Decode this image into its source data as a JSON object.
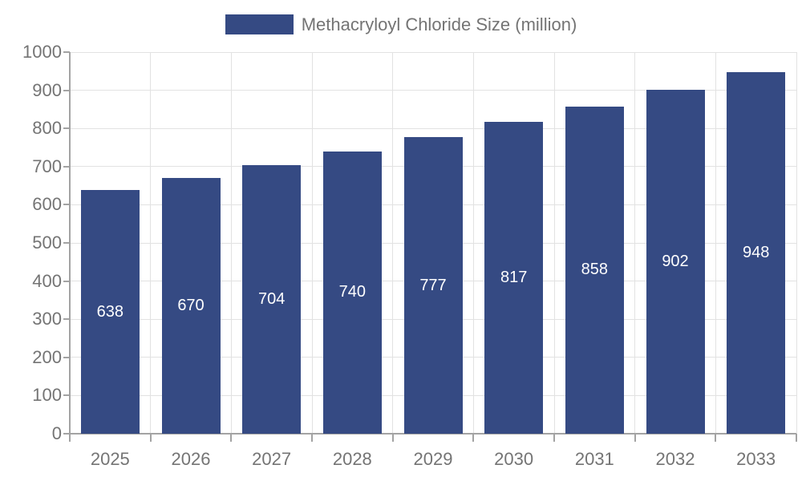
{
  "legend": {
    "label": "Methacryloyl Chloride Size (million)"
  },
  "colors": {
    "bar": "#354a83",
    "bar_label": "#ffffff",
    "grid": "#e2e2e2",
    "axis": "#a3a3a3",
    "tick_text": "#747474",
    "background": "#ffffff"
  },
  "chart_data": {
    "type": "bar",
    "title": "Methacryloyl Chloride Size (million)",
    "categories": [
      "2025",
      "2026",
      "2027",
      "2028",
      "2029",
      "2030",
      "2031",
      "2032",
      "2033"
    ],
    "series": [
      {
        "name": "Methacryloyl Chloride Size (million)",
        "values": [
          638,
          670,
          704,
          740,
          777,
          817,
          858,
          902,
          948
        ]
      }
    ],
    "xlabel": "",
    "ylabel": "",
    "ylim": [
      0,
      1000
    ],
    "ytick_step": 100,
    "ytick_labels": [
      "0",
      "100",
      "200",
      "300",
      "400",
      "500",
      "600",
      "700",
      "800",
      "900",
      "1000"
    ],
    "grid": true,
    "legend_position": "top-center",
    "bar_labels": true
  }
}
